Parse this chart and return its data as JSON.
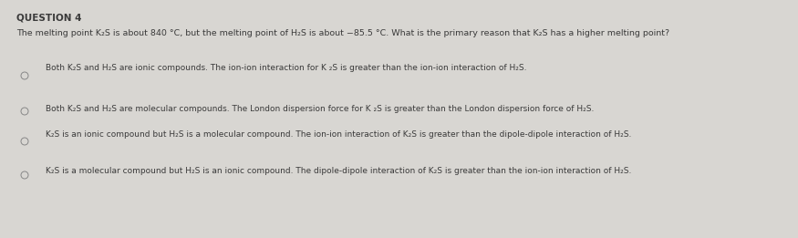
{
  "background_color": "#d8d6d2",
  "title": "QUESTION 4",
  "question": "The melting point K₂S is about 840 °C, but the melting point of H₂S is about −85.5 °C. What is the primary reason that K₂S has a higher melting point?",
  "options": [
    "Both K₂S and H₂S are ionic compounds. The ion-ion interaction for K ₂S is greater than the ion-ion interaction of H₂S.",
    "Both K₂S and H₂S are molecular compounds. The London dispersion force for K ₂S is greater than the London dispersion force of H₂S.",
    "K₂S is an ionic compound but H₂S is a molecular compound. The ion-ion interaction of K₂S is greater than the dipole-dipole interaction of H₂S.",
    "K₂S is a molecular compound but H₂S is an ionic compound. The dipole-dipole interaction of K₂S is greater than the ion-ion interaction of H₂S."
  ],
  "title_fontsize": 7.5,
  "question_fontsize": 6.8,
  "option_fontsize": 6.5,
  "title_color": "#3a3a3a",
  "text_color": "#3a3a3a",
  "circle_color": "#888888"
}
